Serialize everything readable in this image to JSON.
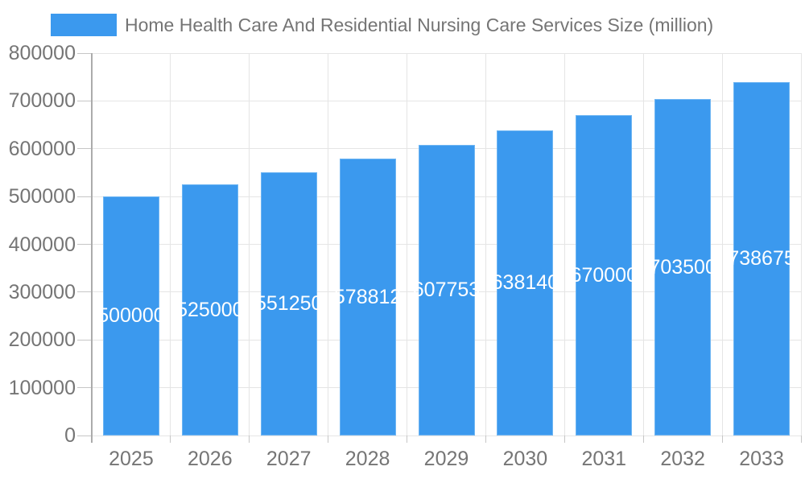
{
  "chart_data": {
    "type": "bar",
    "title": "Home Health Care And Residential Nursing Care Services Size (million)",
    "categories": [
      "2025",
      "2026",
      "2027",
      "2028",
      "2029",
      "2030",
      "2031",
      "2032",
      "2033"
    ],
    "values": [
      500000,
      525000,
      551250,
      578812,
      607753,
      638140,
      670000,
      703500,
      738675
    ],
    "bar_labels": [
      "500000",
      "525000",
      "551250",
      "578812",
      "607753",
      "638140",
      "670000",
      "703500",
      "738675"
    ],
    "xlabel": "",
    "ylabel": "",
    "ylim": [
      0,
      800000
    ],
    "ytick_step": 100000,
    "ytick_labels": [
      "0",
      "100000",
      "200000",
      "300000",
      "400000",
      "500000",
      "600000",
      "700000",
      "800000"
    ],
    "grid": true,
    "legend_position": "top-left",
    "colors": {
      "bar": "#3B99EE",
      "bar_border": "#6FB6F3",
      "grid": "#E5E5E5",
      "axis": "#ABABAB",
      "tick": "#C6C6C6",
      "tick_label": "#757575",
      "title": "#757575",
      "value_label": "#FFFFFF"
    }
  }
}
